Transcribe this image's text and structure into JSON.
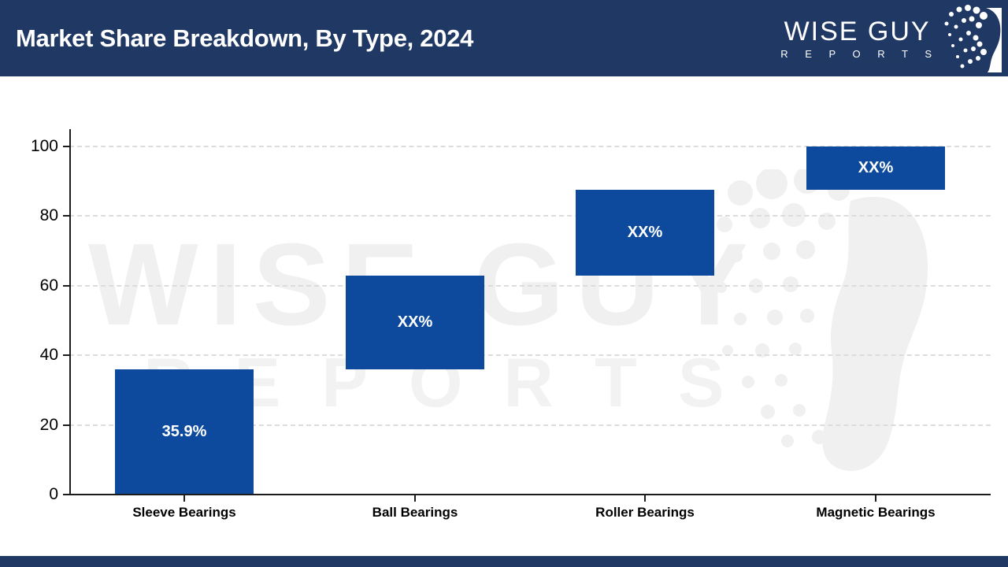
{
  "header": {
    "title": "Market Share Breakdown, By Type, 2024",
    "logo": {
      "line1": "WISE GUY",
      "line2": "R E P O R T S"
    }
  },
  "watermark": {
    "line1": "WISE GUY",
    "line2": "REPORTS"
  },
  "colors": {
    "header_bg": "#203864",
    "footer_bg": "#203864",
    "bar": "#0d4a9e",
    "bar_label": "#ffffff",
    "gridline": "#dcdcdc",
    "axis": "#1c1c1c",
    "watermark": "#f0f0f0"
  },
  "chart_data": {
    "type": "bar",
    "subtype": "waterfall",
    "title": "Market Share Breakdown, By Type, 2024",
    "categories": [
      "Sleeve Bearings",
      "Ball Bearings",
      "Roller Bearings",
      "Magnetic Bearings"
    ],
    "bars": [
      {
        "category": "Sleeve Bearings",
        "start": 0,
        "end": 35.9,
        "label": "35.9%"
      },
      {
        "category": "Ball Bearings",
        "start": 35.9,
        "end": 62.9,
        "label": "XX%"
      },
      {
        "category": "Roller Bearings",
        "start": 62.9,
        "end": 87.6,
        "label": "XX%"
      },
      {
        "category": "Magnetic Bearings",
        "start": 87.6,
        "end": 100,
        "label": "XX%"
      }
    ],
    "yticks": [
      0,
      20,
      40,
      60,
      80,
      100
    ],
    "ylim": [
      0,
      100
    ],
    "xlabel": "",
    "ylabel": "",
    "grid": "dashed-horizontal",
    "legend": "none"
  }
}
